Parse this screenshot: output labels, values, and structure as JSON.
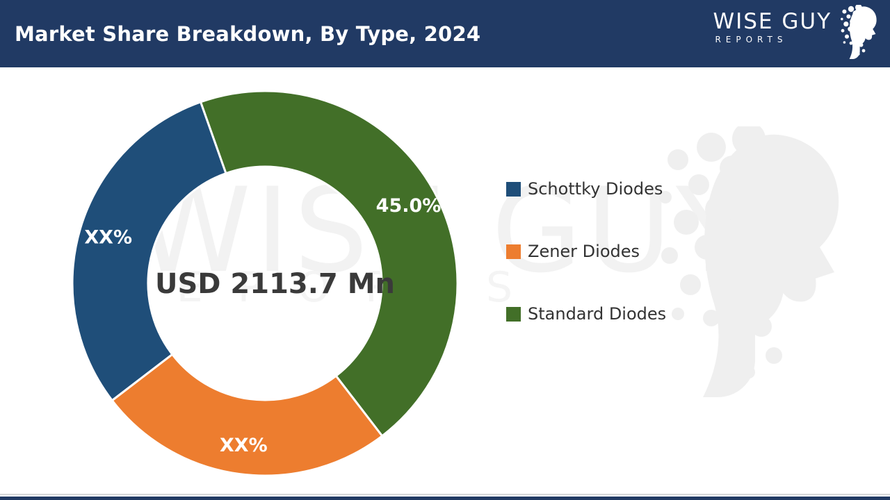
{
  "header": {
    "title": "Market Share Breakdown, By Type, 2024",
    "logo": {
      "brand_line1": "WISE GUY",
      "brand_line2": "REPORTS"
    }
  },
  "watermark": {
    "line1": "WISE GUY",
    "line2": "REPORTS"
  },
  "chart_data": {
    "type": "donut",
    "title": "Market Share Breakdown, By Type, 2024",
    "center_label": "USD 2113.7 Mn",
    "units": "percent share",
    "rotation_deg": -19.5,
    "direction": "clockwise",
    "slices": [
      {
        "name": "Standard Diodes",
        "value": 45.0,
        "label": "45.0%",
        "color": "#426F28"
      },
      {
        "name": "Zener Diodes",
        "value": 25.0,
        "label": "XX%",
        "color": "#ED7D2F"
      },
      {
        "name": "Schottky Diodes",
        "value": 30.0,
        "label": "XX%",
        "color": "#1F4E79"
      }
    ],
    "legend": [
      {
        "label": "Schottky Diodes",
        "color": "#1F4E79"
      },
      {
        "label": "Zener Diodes",
        "color": "#ED7D2F"
      },
      {
        "label": "Standard Diodes",
        "color": "#426F28"
      }
    ],
    "legend_position": "right"
  },
  "colors": {
    "header_bg": "#213A64",
    "title_text": "#FFFFFF",
    "center_text": "#3A3A3A",
    "legend_text": "#333333",
    "slice_label_text": "#FFFFFF",
    "watermark": "#F2F2F2",
    "hairline": "#D9D9D9",
    "bottom_bar": "#213A64"
  }
}
